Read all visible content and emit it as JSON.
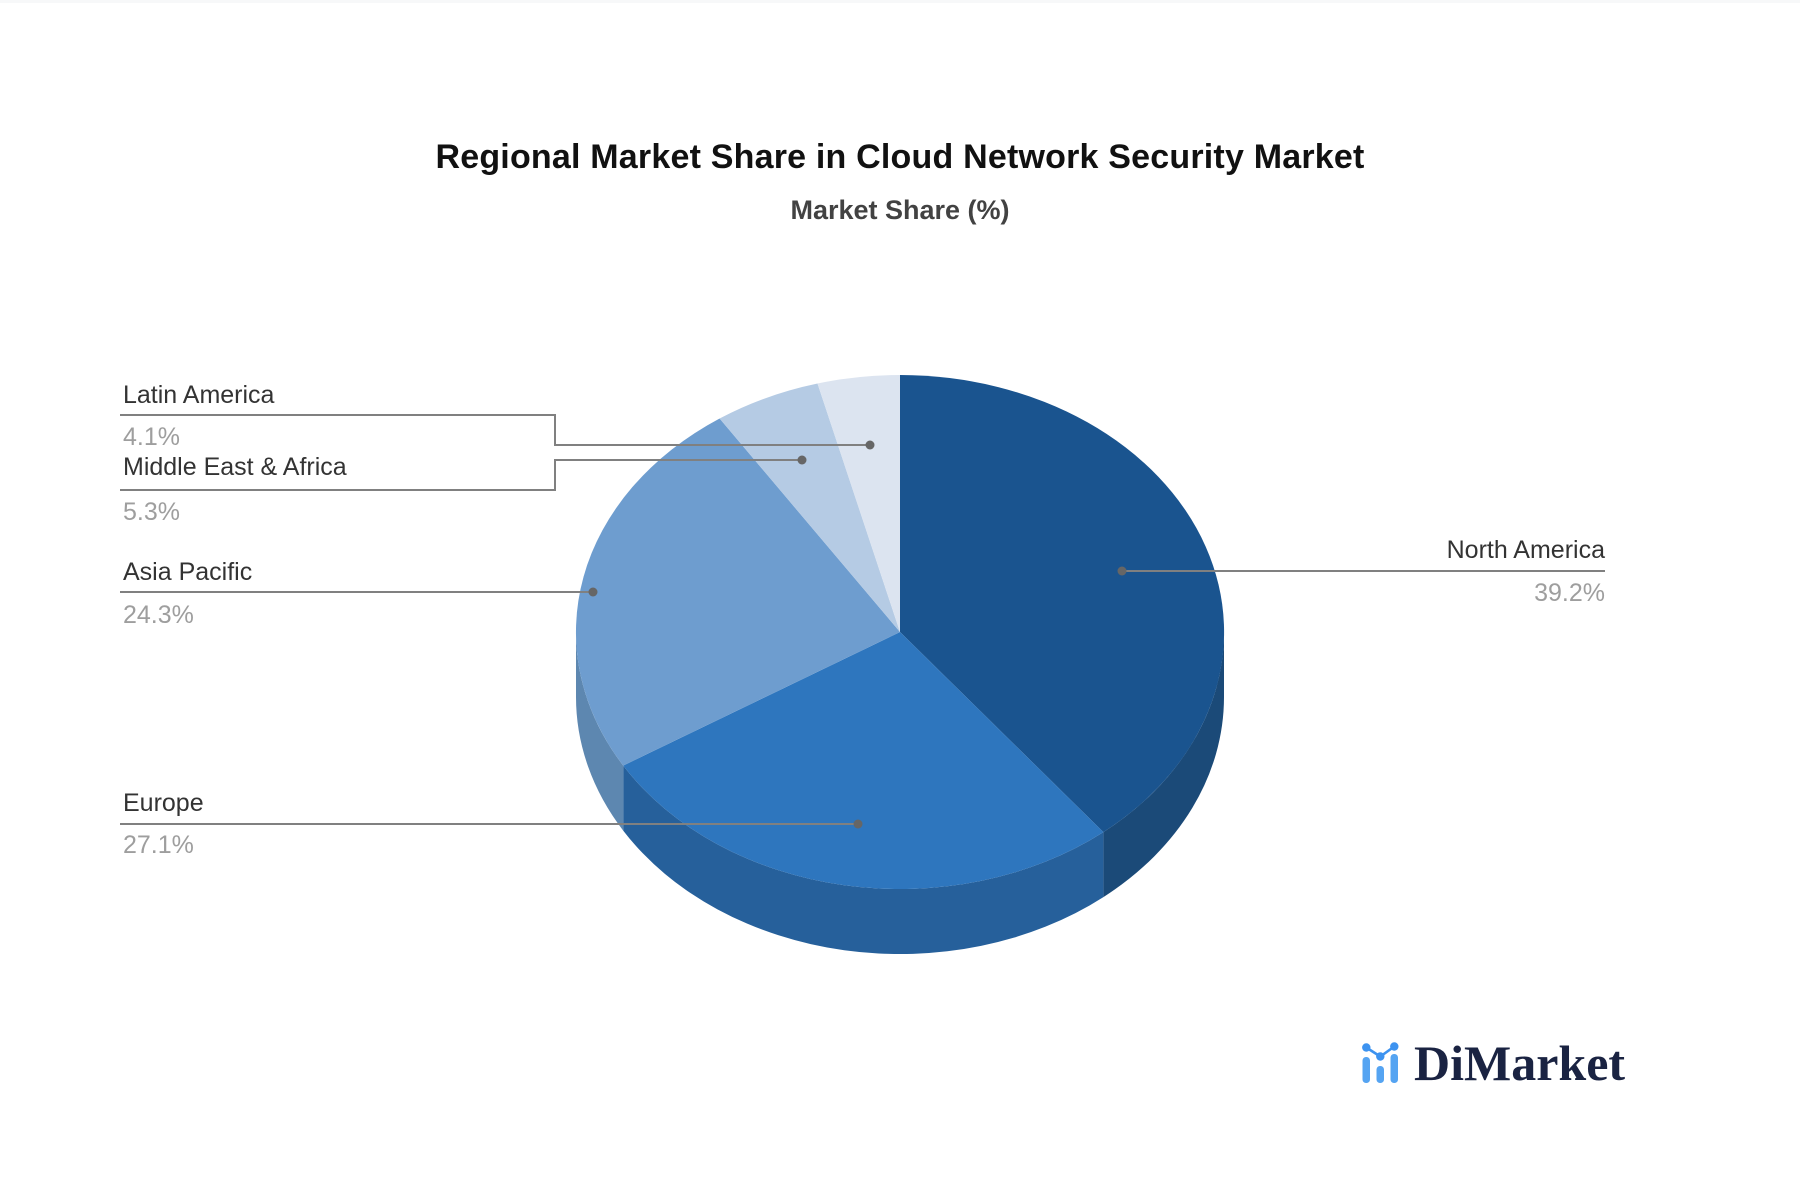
{
  "title": "Regional Market Share in Cloud Network Security Market",
  "subtitle": "Market Share (%)",
  "brand": {
    "name": "DiMarket",
    "icon": "bar-sparkline-logo-icon",
    "text_color": "#1a2342",
    "icon_bar_color": "#55a4f2",
    "icon_dot_color": "#3d93f0"
  },
  "chart_data": {
    "type": "pie",
    "title": "Regional Market Share in Cloud Network Security Market",
    "subtitle": "Market Share (%)",
    "unit": "%",
    "effect": "3d",
    "start_angle_deg": 0,
    "direction": "clockwise",
    "slices": [
      {
        "label": "North America",
        "value": 39.2,
        "pct_text": "39.2%",
        "color": "#1a548f",
        "side_color": "#1b4a78"
      },
      {
        "label": "Europe",
        "value": 27.1,
        "pct_text": "27.1%",
        "color": "#2e76be",
        "side_color": "#26609b"
      },
      {
        "label": "Asia Pacific",
        "value": 24.3,
        "pct_text": "24.3%",
        "color": "#6e9dcf",
        "side_color": "#5d87b0"
      },
      {
        "label": "Middle East & Africa",
        "value": 5.3,
        "pct_text": "5.3%",
        "color": "#b5cbe4",
        "side_color": "#9db8d6"
      },
      {
        "label": "Latin America",
        "value": 4.1,
        "pct_text": "4.1%",
        "color": "#dce4f0",
        "side_color": "#c2cfe2"
      }
    ],
    "legend": "none",
    "labels_position": "outside-with-leader-lines",
    "leader_line_color": "#808080",
    "leader_dot_color": "#666666",
    "label_color": "#333333",
    "value_color": "#9e9e9e"
  }
}
